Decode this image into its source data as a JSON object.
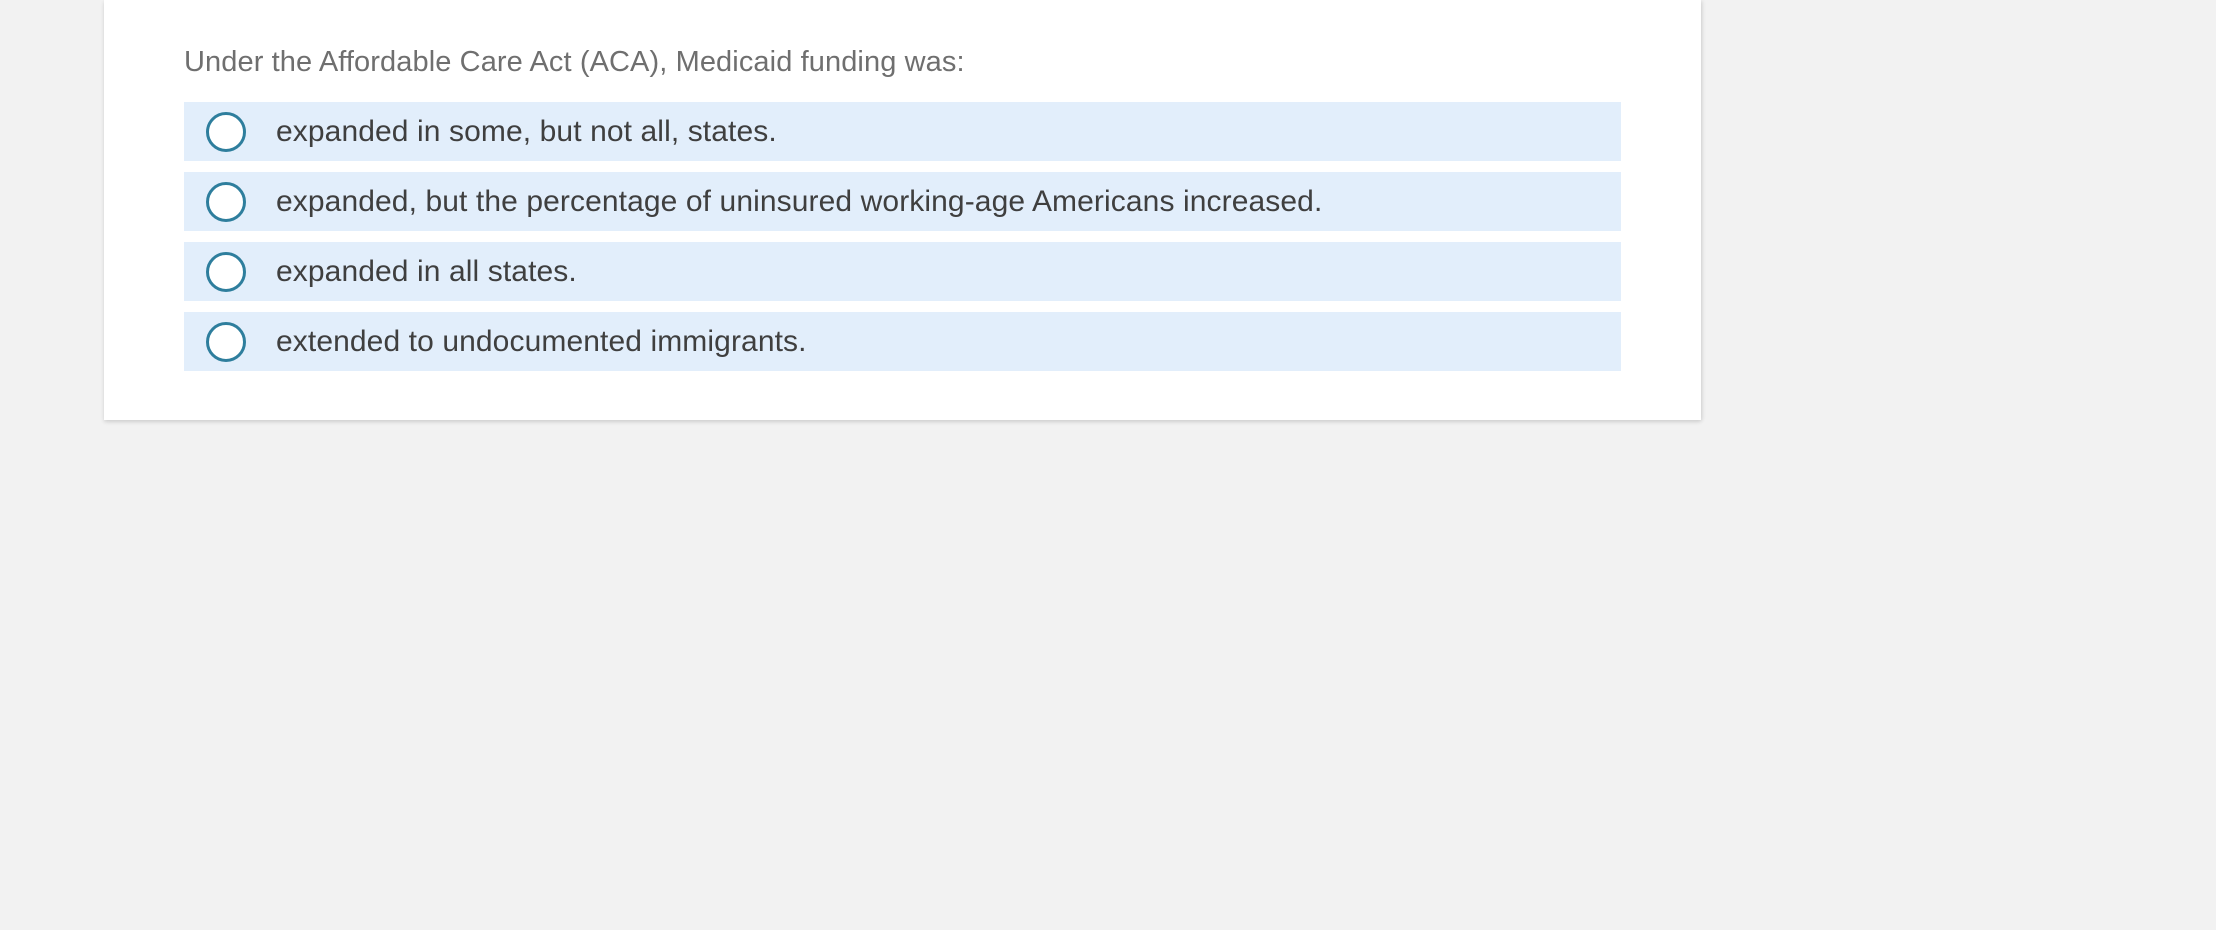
{
  "question": {
    "text": "Under the Affordable Care Act (ACA), Medicaid funding was:"
  },
  "options": [
    {
      "label": "expanded in some, but not all, states.",
      "selected": false
    },
    {
      "label": "expanded, but the percentage of uninsured working-age Americans increased.",
      "selected": false
    },
    {
      "label": "expanded in all states.",
      "selected": false
    },
    {
      "label": "extended to undocumented immigrants.",
      "selected": false
    }
  ],
  "colors": {
    "page_background": "#f2f2f2",
    "card_background": "#ffffff",
    "option_background": "#e2eefb",
    "radio_border": "#2e7e9d",
    "question_text": "#6f6f6f",
    "option_text": "#3f3f3f"
  }
}
